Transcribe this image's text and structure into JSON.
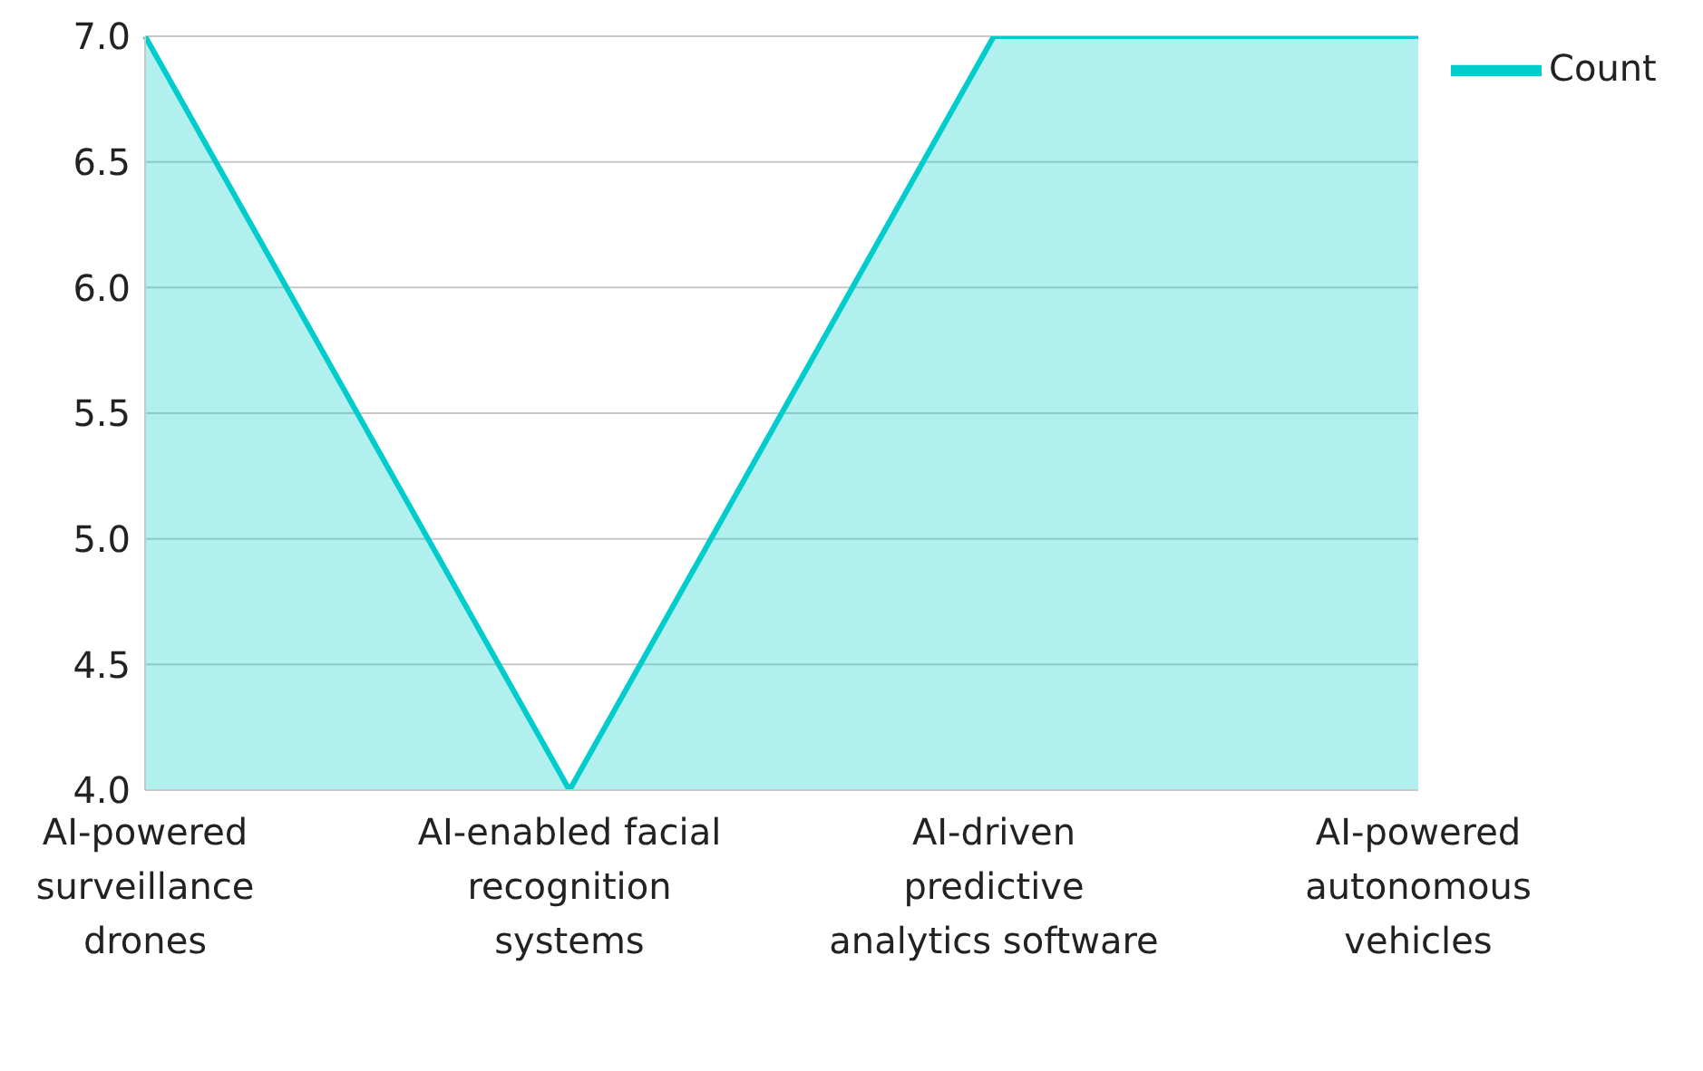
{
  "chart_data": {
    "type": "area",
    "categories": [
      "AI-powered surveillance drones",
      "AI-enabled facial recognition systems",
      "AI-driven predictive analytics software",
      "AI-powered autonomous vehicles"
    ],
    "series": [
      {
        "name": "Count",
        "color": "#00cccc",
        "values": [
          7,
          4,
          7,
          7
        ]
      }
    ],
    "ylim": [
      4,
      7
    ],
    "yticks": [
      {
        "value": 4,
        "label": "4.0"
      },
      {
        "value": 4.5,
        "label": "4.5"
      },
      {
        "value": 5,
        "label": "5.0"
      },
      {
        "value": 5.5,
        "label": "5.5"
      },
      {
        "value": 6,
        "label": "6.0"
      },
      {
        "value": 6.5,
        "label": "6.5"
      },
      {
        "value": 7,
        "label": "7.0"
      }
    ],
    "grid": "y",
    "legend": "top right"
  }
}
